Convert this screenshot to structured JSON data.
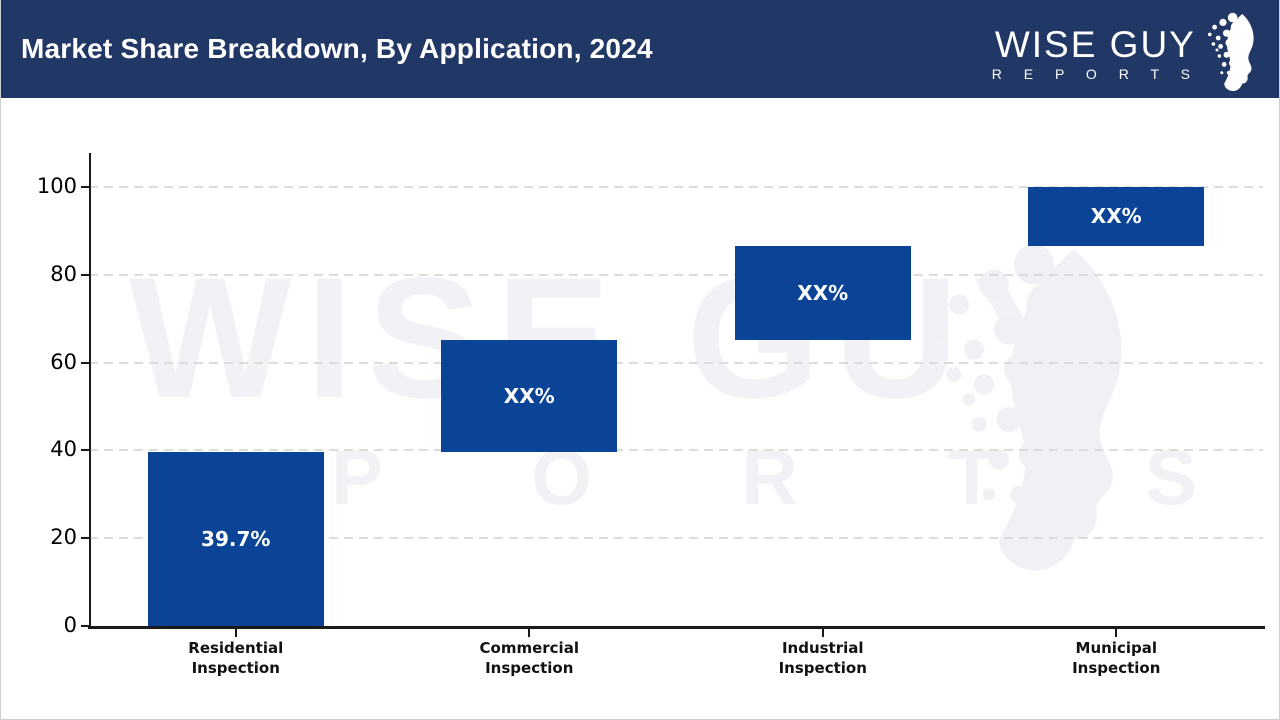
{
  "header": {
    "title": "Market Share Breakdown, By Application, 2024",
    "logo": {
      "name": "WISE GUY",
      "tagline": "R E P O R T S"
    }
  },
  "watermark": {
    "line1": "WISE GUY",
    "line2": "P O R T S"
  },
  "chart_data": {
    "type": "bar",
    "subtype": "floating-waterfall",
    "title": "Market Share Breakdown, By Application, 2024",
    "categories": [
      "Residential\nInspection",
      "Commercial\nInspection",
      "Industrial\nInspection",
      "Municipal\nInspection"
    ],
    "segments": [
      {
        "category": "Residential Inspection",
        "start": 0,
        "end": 39.7,
        "label": "39.7%"
      },
      {
        "category": "Commercial Inspection",
        "start": 39.7,
        "end": 65.2,
        "label": "XX%"
      },
      {
        "category": "Industrial Inspection",
        "start": 65.2,
        "end": 86.6,
        "label": "XX%"
      },
      {
        "category": "Municipal Inspection",
        "start": 86.6,
        "end": 100,
        "label": "XX%"
      }
    ],
    "ylim": [
      0,
      105
    ],
    "yticks": [
      0,
      20,
      40,
      60,
      80,
      100
    ],
    "xlabel": "",
    "ylabel": "",
    "grid": "horizontal-dashed",
    "legend": "none",
    "bar_color": "#0b4397",
    "bar_label_color": "#ffffff"
  },
  "colors": {
    "header_bg": "#213765",
    "bar": "#0b4397",
    "grid": "#dcdcdc",
    "axis": "#1a1a1a",
    "watermark": "#f1f2f5",
    "canvas_border": "#cfcfcf"
  }
}
